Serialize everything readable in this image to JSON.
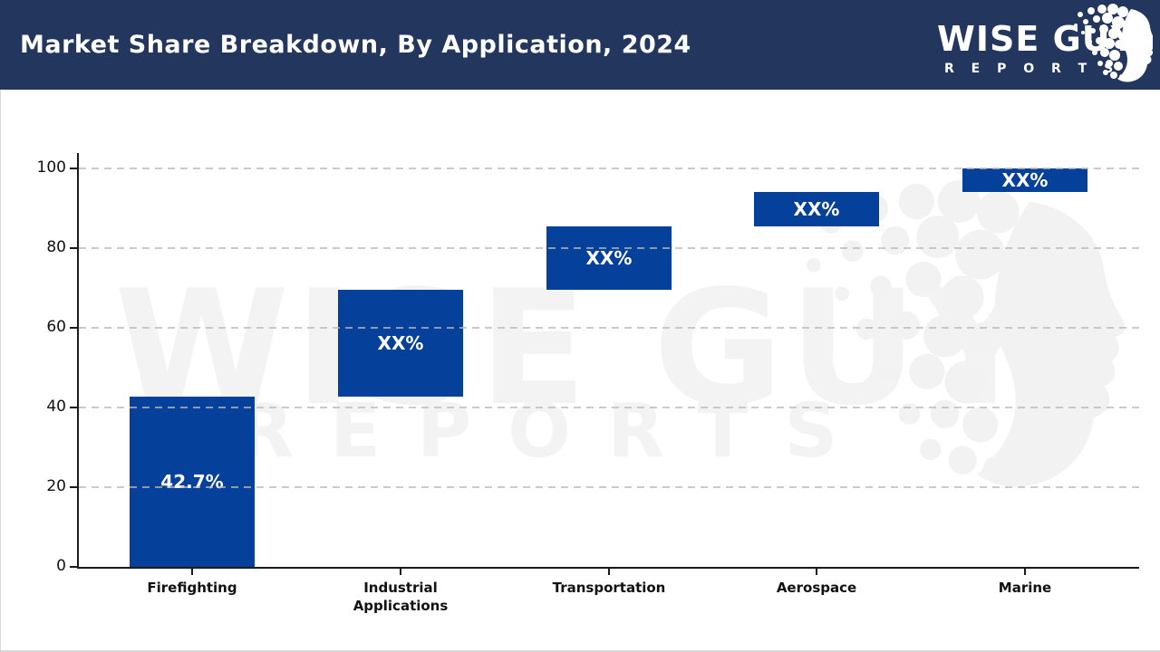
{
  "header": {
    "title": "Market Share Breakdown, By Application, 2024",
    "logo": {
      "line1": "WISE GUY",
      "line2": "R E P O R T S"
    }
  },
  "watermark": {
    "line1": "WISE GUY",
    "line2": "REPORTS"
  },
  "colors": {
    "header_bg": "#23365E",
    "bar_blue": "#05409A",
    "bar_label": "#ffffff",
    "axis": "#1a1a1a",
    "grid": "#bdbdbd",
    "watermark": "#f3f3f3"
  },
  "chart_data": {
    "type": "bar",
    "subtype": "waterfall",
    "title": "Market Share Breakdown, By Application, 2024",
    "xlabel": "",
    "ylabel": "",
    "ylim": [
      0,
      100
    ],
    "yticks": [
      0,
      20,
      40,
      60,
      80,
      100
    ],
    "grid": "horizontal-dashed",
    "legend": "none",
    "categories": [
      "Firefighting",
      "Industrial Applications",
      "Transportation",
      "Aerospace",
      "Marine"
    ],
    "segments": [
      {
        "category": "Firefighting",
        "start": 0,
        "end": 42.7,
        "value": 42.7,
        "label": "42.7%"
      },
      {
        "category": "Industrial Applications",
        "start": 42.7,
        "end": 69.6,
        "value": 26.9,
        "label": "XX%"
      },
      {
        "category": "Transportation",
        "start": 69.6,
        "end": 85.4,
        "value": 15.8,
        "label": "XX%"
      },
      {
        "category": "Aerospace",
        "start": 85.4,
        "end": 94.1,
        "value": 8.7,
        "label": "XX%"
      },
      {
        "category": "Marine",
        "start": 94.1,
        "end": 100.0,
        "value": 5.9,
        "label": "XX%"
      }
    ]
  }
}
